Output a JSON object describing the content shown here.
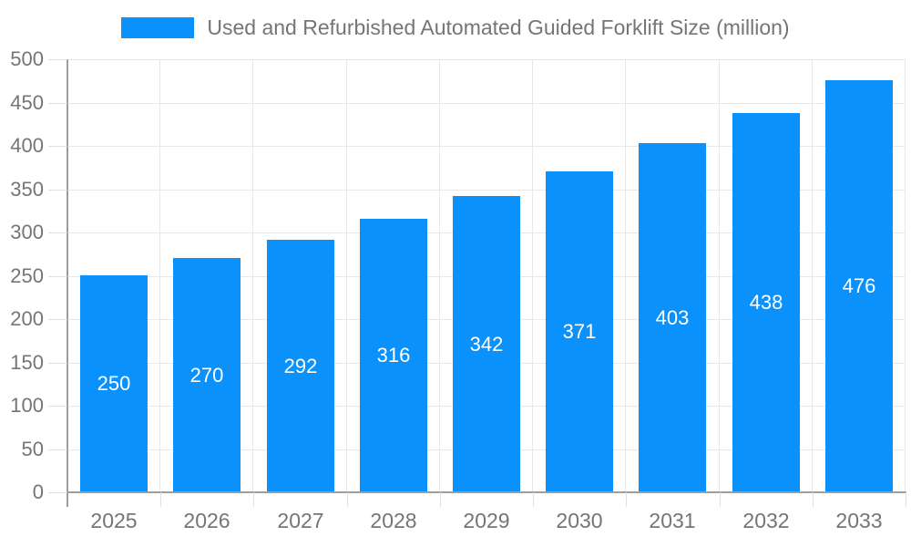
{
  "legend": {
    "title": "Used and Refurbished Automated Guided Forklift Size (million)"
  },
  "chart_data": {
    "type": "bar",
    "categories": [
      "2025",
      "2026",
      "2027",
      "2028",
      "2029",
      "2030",
      "2031",
      "2032",
      "2033"
    ],
    "values": [
      250,
      270,
      292,
      316,
      342,
      371,
      403,
      438,
      476
    ],
    "title": "Used and Refurbished Automated Guided Forklift Size (million)",
    "xlabel": "",
    "ylabel": "",
    "ylim": [
      0,
      500
    ],
    "ytick_step": 50,
    "grid": true,
    "legend_position": "top-center",
    "bar_color": "#0A91FB",
    "value_label_color": "#FFFFFF",
    "grid_color": "#E8E8E8",
    "tick_color": "#E0E0E0",
    "axis_color": "#9E9E9E",
    "text_color": "#757575"
  }
}
